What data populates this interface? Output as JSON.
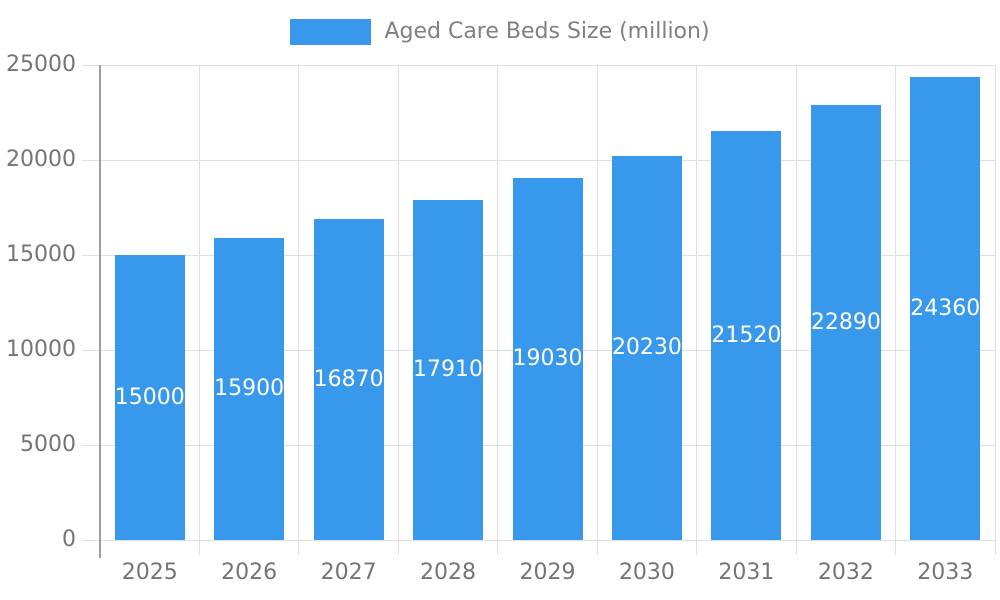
{
  "legend": {
    "label": "Aged Care Beds Size (million)"
  },
  "chart_data": {
    "type": "bar",
    "title": "",
    "categories": [
      "2025",
      "2026",
      "2027",
      "2028",
      "2029",
      "2030",
      "2031",
      "2032",
      "2033"
    ],
    "series": [
      {
        "name": "Aged Care Beds Size (million)",
        "values": [
          15000,
          15900,
          16870,
          17910,
          19030,
          20230,
          21520,
          22890,
          24360
        ]
      }
    ],
    "bar_labels": [
      "15000",
      "15900",
      "16870",
      "17910",
      "19030",
      "20230",
      "21520",
      "22890",
      "24360"
    ],
    "ylim": [
      0,
      25000
    ],
    "yticks": [
      0,
      5000,
      10000,
      15000,
      20000,
      25000
    ],
    "ytick_labels": [
      "0",
      "5000",
      "10000",
      "15000",
      "20000",
      "25000"
    ],
    "grid": true,
    "legend_position": "top-center",
    "colors": {
      "bar": "#3898ec",
      "bar_value_text": "#ffffff",
      "axis_tick_text": "#757575",
      "legend_text": "#808080",
      "gridline": "#e0e0e0",
      "axis_line": "#9e9e9e",
      "background": "#ffffff"
    }
  }
}
